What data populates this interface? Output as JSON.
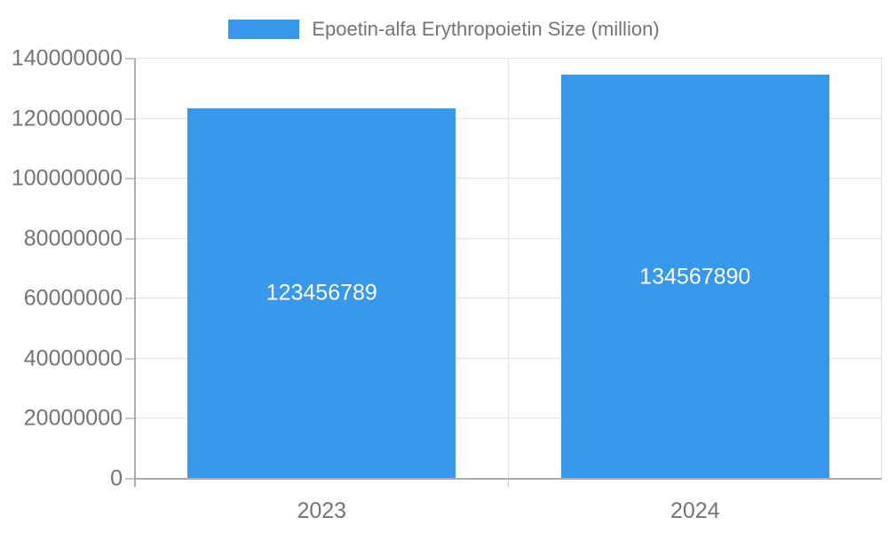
{
  "legend": {
    "label": "Epoetin-alfa Erythropoietin Size (million)"
  },
  "chart_data": {
    "type": "bar",
    "title": "",
    "categories": [
      "2023",
      "2024"
    ],
    "series": [
      {
        "name": "Epoetin-alfa Erythropoietin Size (million)",
        "values": [
          123456789,
          134567890
        ]
      }
    ],
    "value_labels": [
      "123456789",
      "134567890"
    ],
    "xlabel": "",
    "ylabel": "",
    "ylim": [
      0,
      140000000
    ],
    "yticks": [
      0,
      20000000,
      40000000,
      60000000,
      80000000,
      100000000,
      120000000,
      140000000
    ],
    "grid": true,
    "legend_position": "top-center",
    "colors": {
      "bar": "#3898ec",
      "grid": "#e2e2e2",
      "axis": "#adadad",
      "tick": "#c9c9c9",
      "text": "#757575",
      "bar_label": "#ffffff"
    }
  }
}
